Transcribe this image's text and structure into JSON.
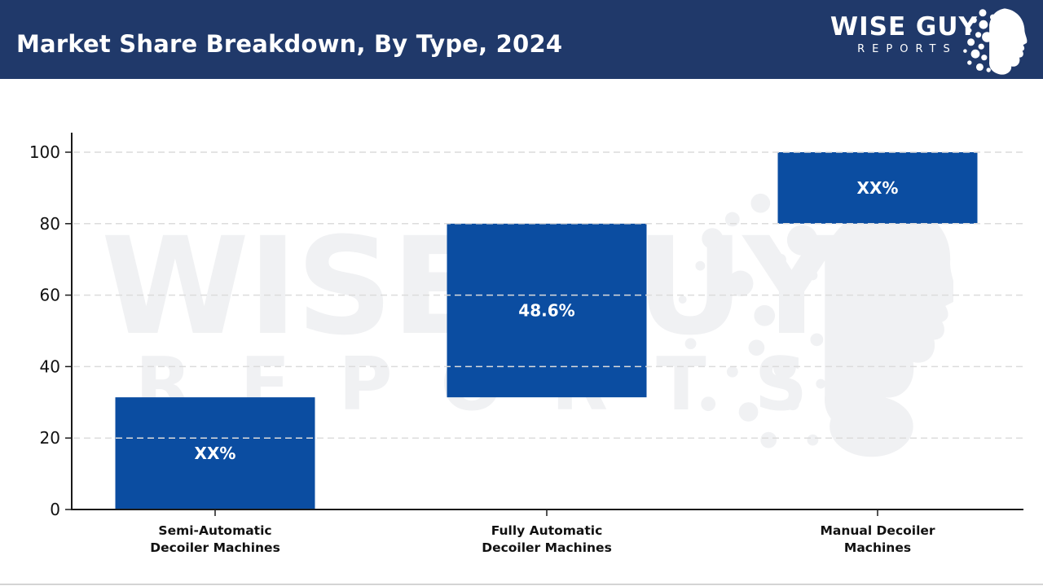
{
  "header": {
    "title": "Market Share Breakdown, By Type, 2024",
    "logo": {
      "name": "WISE GUY",
      "sub": "REPORTS"
    }
  },
  "watermark": {
    "line1": "WISE GUY",
    "line2": "R E P O R T S"
  },
  "chart_data": {
    "type": "bar",
    "subtype": "waterfall",
    "title": "Market Share Breakdown, By Type, 2024",
    "xlabel": "",
    "ylabel": "",
    "categories": [
      [
        "Semi-Automatic",
        "Decoiler Machines"
      ],
      [
        "Fully Automatic",
        "Decoiler Machines"
      ],
      [
        "Manual Decoiler",
        "Machines"
      ]
    ],
    "bars": [
      {
        "label": "XX%",
        "base": 0,
        "value": 31.4
      },
      {
        "label": "48.6%",
        "base": 31.4,
        "value": 48.6
      },
      {
        "label": "XX%",
        "base": 80,
        "value": 20
      }
    ],
    "ylim": [
      0,
      100
    ],
    "yticks": [
      0,
      20,
      40,
      60,
      80,
      100
    ],
    "grid": "horizontal-dashed",
    "grid_over_bars": true,
    "legend": "none",
    "bar_color": "#0b4da1",
    "bar_label_color": "#ffffff"
  },
  "colors": {
    "header_bg": "#20396a",
    "bar": "#0b4da1",
    "watermark": "#f0f1f3",
    "axis": "#1a1a1a",
    "grid": "#dcdcdc",
    "tick_text": "#111111"
  }
}
